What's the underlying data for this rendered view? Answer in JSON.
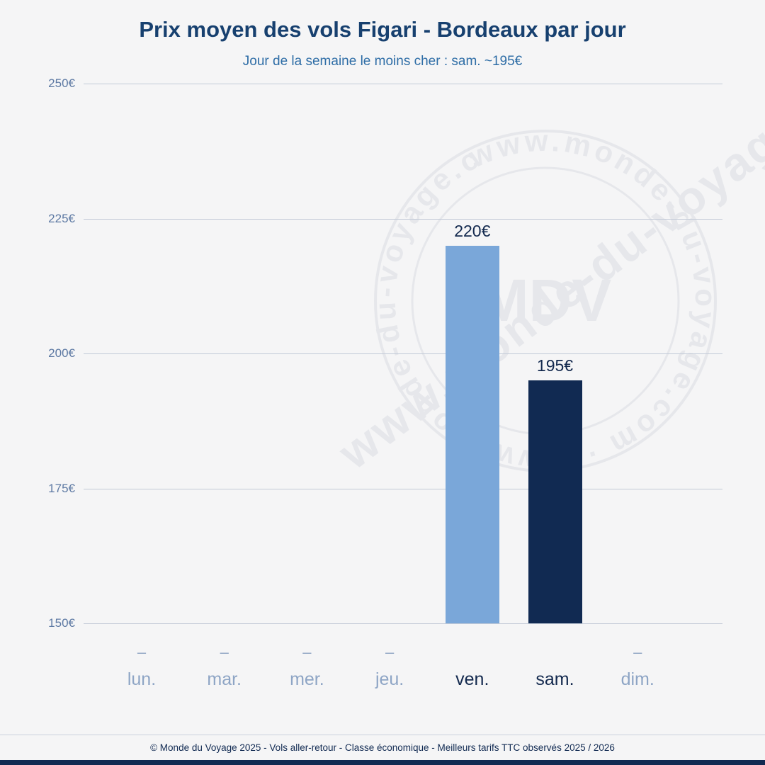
{
  "chart": {
    "title": "Prix moyen des vols Figari - Bordeaux par jour",
    "subtitle": "Jour de la semaine le moins cher : sam. ~195€"
  },
  "chart_data": {
    "type": "bar",
    "title": "Prix moyen des vols Figari - Bordeaux par jour",
    "subtitle": "Jour de la semaine le moins cher : sam. ~195€",
    "categories": [
      "lun.",
      "mar.",
      "mer.",
      "jeu.",
      "ven.",
      "sam.",
      "dim."
    ],
    "values": [
      null,
      null,
      null,
      null,
      220,
      195,
      null
    ],
    "value_labels": [
      null,
      null,
      null,
      null,
      "220€",
      "195€",
      null
    ],
    "empty_marker": "–",
    "highlight": [
      false,
      false,
      false,
      false,
      true,
      true,
      false
    ],
    "bar_colors": [
      null,
      null,
      null,
      null,
      "#7aa7d9",
      "#112a52",
      null
    ],
    "ylim": [
      150,
      250
    ],
    "yticks": [
      150,
      175,
      200,
      225,
      250
    ],
    "ytick_labels": [
      "150€",
      "175€",
      "200€",
      "225€",
      "250€"
    ],
    "grid": true,
    "legend": false,
    "xlabel": "",
    "ylabel": ""
  },
  "watermark": {
    "ring_text": "www.monde-du-voyage.com · www.monde-du-voyage.com ·",
    "center": "MDV",
    "diagonal": "www.monde-du-voyage.com"
  },
  "footer": {
    "text": "© Monde du Voyage 2025 - Vols aller-retour - Classe économique - Meilleurs tarifs TTC observés 2025 / 2026"
  },
  "colors": {
    "background": "#f5f5f6",
    "title": "#17406f",
    "subtitle": "#2e6da6",
    "gridline": "#c2cad7",
    "bar_light": "#7aa7d9",
    "bar_dark": "#112a52",
    "inactive_label": "#8ea5c5",
    "active_label": "#13294e"
  }
}
